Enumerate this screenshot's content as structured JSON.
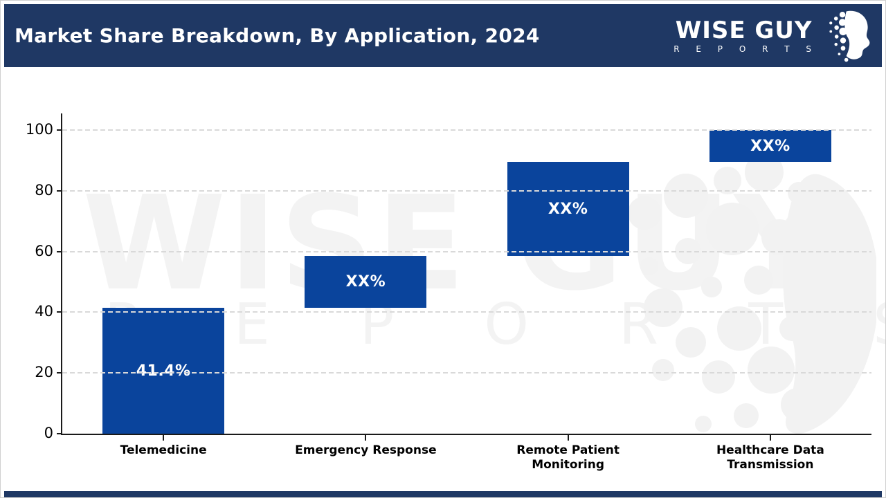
{
  "header": {
    "title": "Market Share Breakdown, By Application, 2024",
    "bg_color": "#1f3864",
    "logo": {
      "line1": "WISE GUY",
      "line2": "R E P O R T S"
    }
  },
  "watermark": {
    "line1": "WISE GUY",
    "line2": "R E P O R T S"
  },
  "chart_data": {
    "type": "bar",
    "subtype": "waterfall",
    "title": "Market Share Breakdown, By Application, 2024",
    "categories": [
      "Telemedicine",
      "Emergency Response",
      "Remote Patient Monitoring",
      "Healthcare Data Transmission"
    ],
    "category_label_lines": [
      [
        "Telemedicine"
      ],
      [
        "Emergency Response"
      ],
      [
        "Remote Patient",
        "Monitoring"
      ],
      [
        "Healthcare Data",
        "Transmission"
      ]
    ],
    "segments": [
      {
        "category": "Telemedicine",
        "start": 0,
        "end": 41.4,
        "label": "41.4%"
      },
      {
        "category": "Emergency Response",
        "start": 41.4,
        "end": 58.5,
        "label": "XX%"
      },
      {
        "category": "Remote Patient Monitoring",
        "start": 58.5,
        "end": 89.5,
        "label": "XX%"
      },
      {
        "category": "Healthcare Data Transmission",
        "start": 89.5,
        "end": 100,
        "label": "XX%"
      }
    ],
    "ylim": [
      0,
      100
    ],
    "yticks": [
      0,
      20,
      40,
      60,
      80,
      100
    ],
    "grid": "horizontal dashed, drawn over bars",
    "legend": "none",
    "bar_color": "#0a449c",
    "value_label_color": "#ffffff",
    "axis_color": "#1a1a1a",
    "grid_color": "#d9d9d9"
  }
}
